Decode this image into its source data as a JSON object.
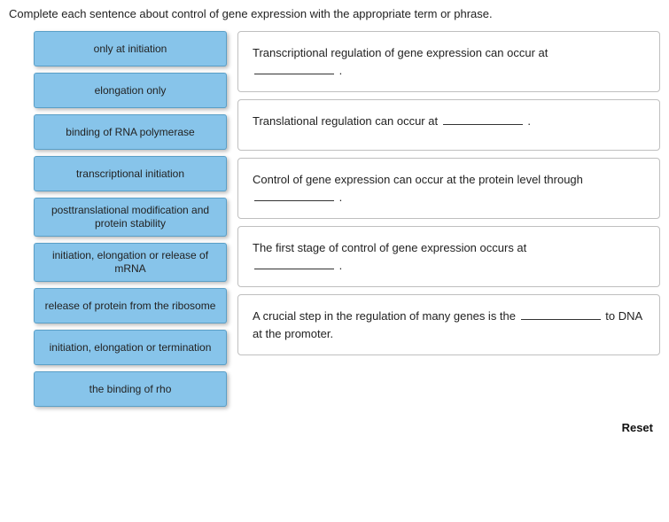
{
  "prompt": "Complete each sentence about control of gene expression with the appropriate term or phrase.",
  "options": [
    {
      "label": "only at initiation"
    },
    {
      "label": "elongation only"
    },
    {
      "label": "binding of RNA polymerase"
    },
    {
      "label": "transcriptional initiation"
    },
    {
      "label": "posttranslational modification and protein stability"
    },
    {
      "label": "initiation, elongation or release of mRNA"
    },
    {
      "label": "release of protein from the ribosome"
    },
    {
      "label": "initiation, elongation or termination"
    },
    {
      "label": "the binding of rho"
    }
  ],
  "targets": [
    {
      "pre": "Transcriptional regulation of gene expression can occur at",
      "post": " ."
    },
    {
      "pre": "Translational regulation can occur at ",
      "post": " ."
    },
    {
      "pre": "Control of gene expression can occur at the protein level through",
      "post": " ."
    },
    {
      "pre": "The first stage of control of gene expression occurs at",
      "post": " ."
    },
    {
      "pre": "A crucial step in the regulation of many genes is the ",
      "post": " to DNA at the promoter."
    }
  ],
  "reset_label": "Reset",
  "colors": {
    "tile_bg": "#87c4ea",
    "tile_border": "#5a9fc7",
    "target_border": "#bfbfbf",
    "background": "#ffffff",
    "text": "#222222"
  }
}
